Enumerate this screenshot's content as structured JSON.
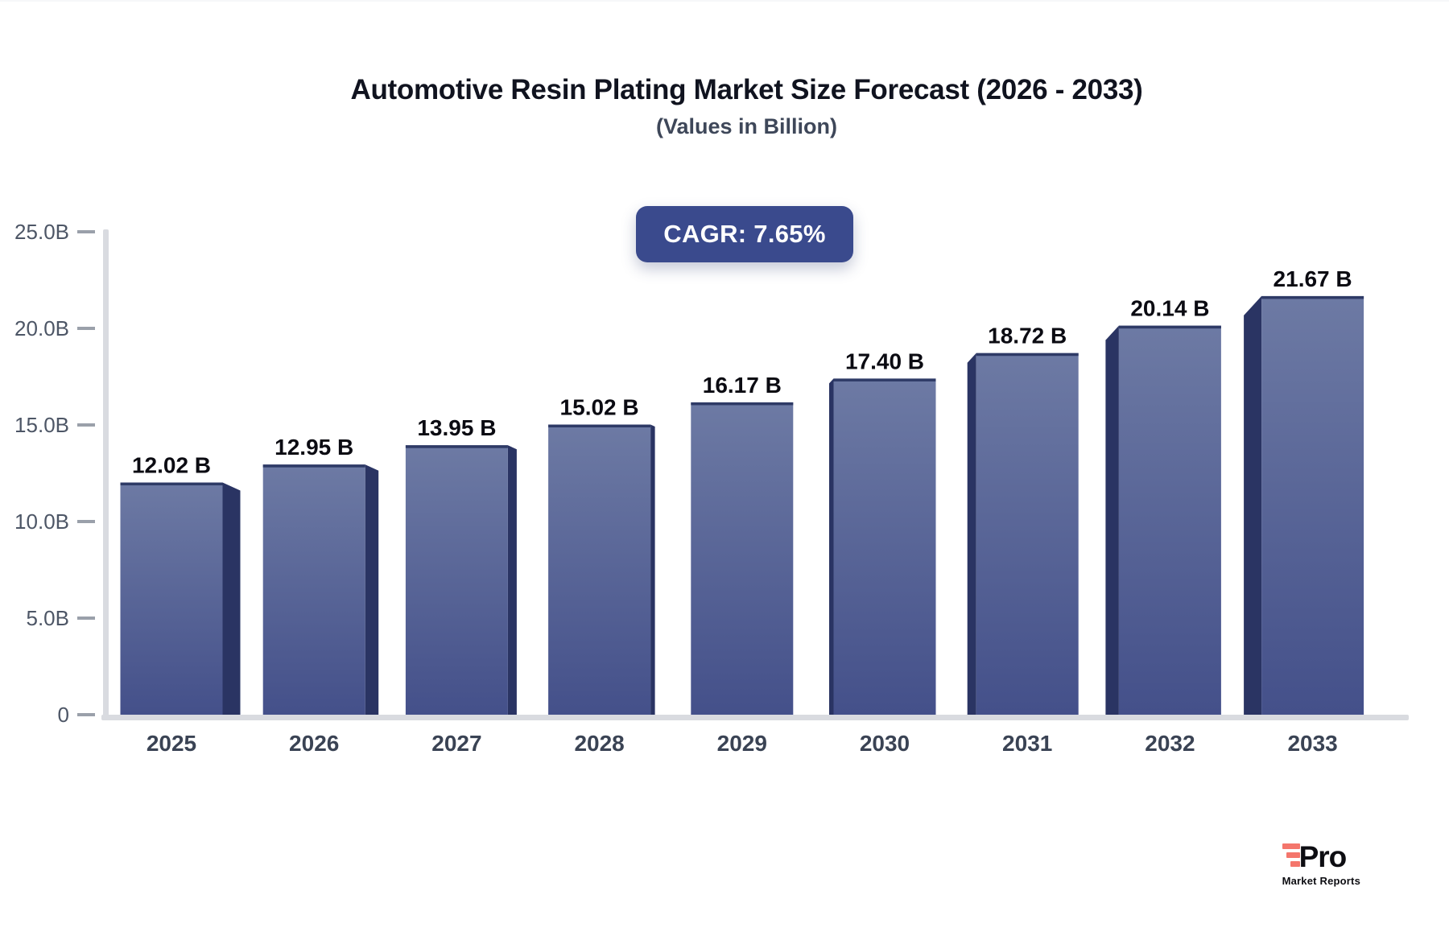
{
  "header": {
    "title": "Automotive Resin Plating Market Size Forecast (2026 - 2033)",
    "subtitle": "(Values in Billion)"
  },
  "badge": {
    "label": "CAGR: 7.65%",
    "bg_color": "#3a4a8d",
    "text_color": "#ffffff"
  },
  "logo": {
    "name": "Pro",
    "subtext": "Market Reports",
    "bar_color": "#f4766c",
    "text_color": "#0d0d12"
  },
  "chart_data": {
    "type": "bar",
    "title": "Automotive Resin Plating Market Size Forecast (2026 - 2033)",
    "subtitle": "(Values in Billion)",
    "unit": "Billion",
    "cagr": "7.65%",
    "categories": [
      "2025",
      "2026",
      "2027",
      "2028",
      "2029",
      "2030",
      "2031",
      "2032",
      "2033"
    ],
    "values": [
      12.02,
      12.95,
      13.95,
      15.02,
      16.17,
      17.4,
      18.72,
      20.14,
      21.67
    ],
    "value_labels": [
      "12.02 B",
      "12.95 B",
      "13.95 B",
      "15.02 B",
      "16.17 B",
      "17.40 B",
      "18.72 B",
      "20.14 B",
      "21.67 B"
    ],
    "ylim": [
      0,
      25
    ],
    "ytick_values": [
      0,
      5,
      10,
      15,
      20,
      25
    ],
    "ytick_labels": [
      "0",
      "5.0B",
      "10.0B",
      "15.0B",
      "20.0B",
      "25.0B"
    ],
    "grid": false,
    "legend": "none",
    "effect": "3d-perspective-center",
    "style": {
      "bar_face_top": "#6d7aa4",
      "bar_face_bottom": "#44508a",
      "bar_side": "#2a3463",
      "bar_top_edge": "#2e3a66",
      "axis_color": "#d9dbe0",
      "tick_color": "#9aa0aa",
      "ytick_label_color": "#4d5666",
      "xtick_label_color": "#3a4354",
      "value_label_color": "#0b0b12"
    }
  }
}
